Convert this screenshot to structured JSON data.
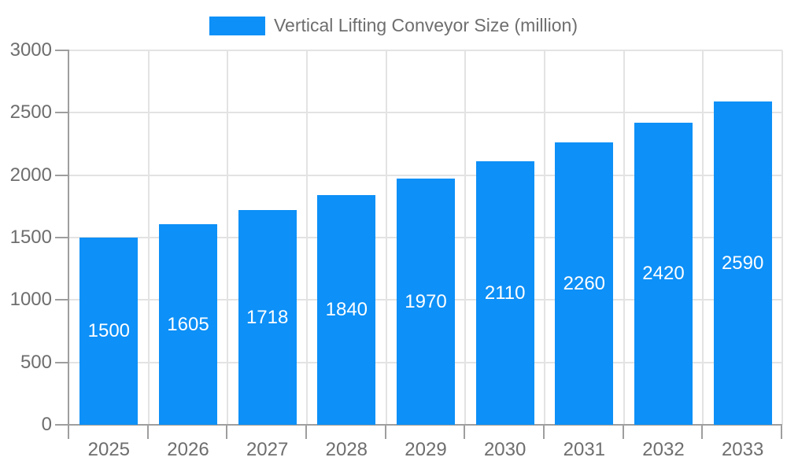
{
  "chart_data": {
    "type": "bar",
    "series_name": "Vertical Lifting Conveyor Size (million)",
    "categories": [
      "2025",
      "2026",
      "2027",
      "2028",
      "2029",
      "2030",
      "2031",
      "2032",
      "2033"
    ],
    "values": [
      1500,
      1605,
      1718,
      1840,
      1970,
      2110,
      2260,
      2420,
      2590
    ],
    "value_labels": [
      "1500",
      "1605",
      "1718",
      "1840",
      "1970",
      "2110",
      "2260",
      "2420",
      "2590"
    ],
    "ylim": [
      0,
      3000
    ],
    "yticks": [
      0,
      500,
      1000,
      1500,
      2000,
      2500,
      3000
    ],
    "ytick_labels": [
      "0",
      "500",
      "1000",
      "1500",
      "2000",
      "2500",
      "3000"
    ],
    "grid": true,
    "legend_position": "top",
    "bar_color": "#0d90f7",
    "value_label_color": "#ffffff",
    "grid_color": "#e3e3e3",
    "axis_color": "#9e9e9e",
    "tick_label_color": "#6e6e6e",
    "background_color": "#ffffff"
  }
}
